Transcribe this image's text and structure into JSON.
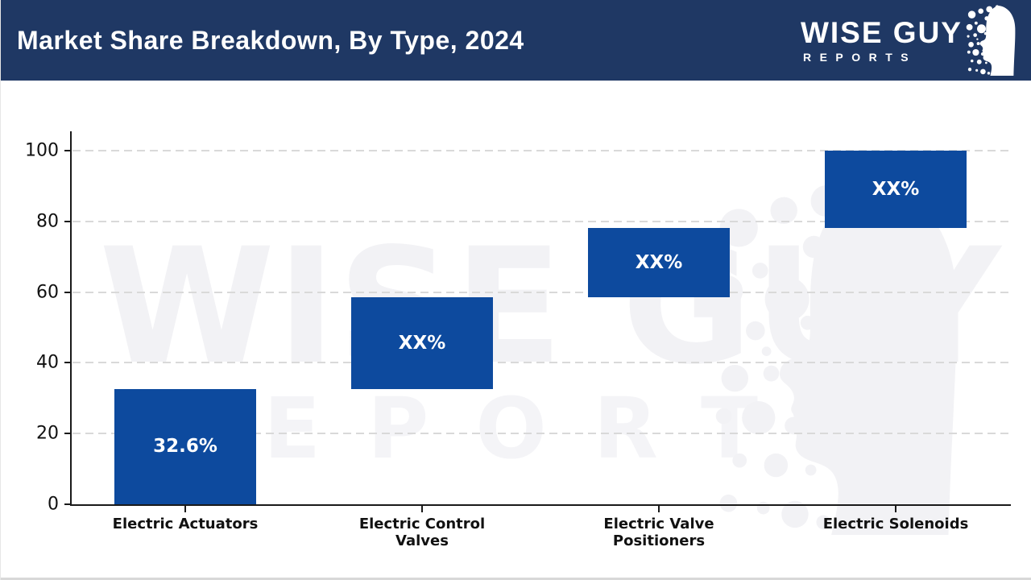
{
  "header": {
    "title": "Market Share Breakdown, By Type, 2024",
    "logo": {
      "line1": "WISE GUY",
      "line2": "REPORTS",
      "icon": "dotted-head-profile-icon"
    }
  },
  "watermark": {
    "line1": "WISE GUY",
    "line2": "REPORTS"
  },
  "chart_data": {
    "type": "bar",
    "variant": "waterfall",
    "title": "Market Share Breakdown, By Type, 2024",
    "categories": [
      "Electric Actuators",
      "Electric Control Valves",
      "Electric Valve Positioners",
      "Electric Solenoids"
    ],
    "category_label_lines": [
      [
        "Electric Actuators"
      ],
      [
        "Electric Control",
        "Valves"
      ],
      [
        "Electric Valve",
        "Positioners"
      ],
      [
        "Electric Solenoids"
      ]
    ],
    "series": [
      {
        "name": "Market Share",
        "segments": [
          {
            "category": "Electric Actuators",
            "start": 0,
            "end": 32.6,
            "label": "32.6%"
          },
          {
            "category": "Electric Control Valves",
            "start": 32.6,
            "end": 58.5,
            "label": "XX%"
          },
          {
            "category": "Electric Valve Positioners",
            "start": 58.5,
            "end": 78.1,
            "label": "XX%"
          },
          {
            "category": "Electric Solenoids",
            "start": 78.1,
            "end": 100,
            "label": "XX%"
          }
        ]
      }
    ],
    "ylim": [
      0,
      100
    ],
    "yticks": [
      0,
      20,
      40,
      60,
      80,
      100
    ],
    "xlabel": "",
    "ylabel": "",
    "grid": "horizontal-dashed",
    "legend": "none",
    "colors": {
      "bar": "#0d4a9e",
      "bar_label": "#ffffff",
      "grid": "#d9d9d9",
      "axis": "#1a1a1a",
      "header_bg": "#1f3864",
      "watermark": "#f2f2f5"
    }
  }
}
